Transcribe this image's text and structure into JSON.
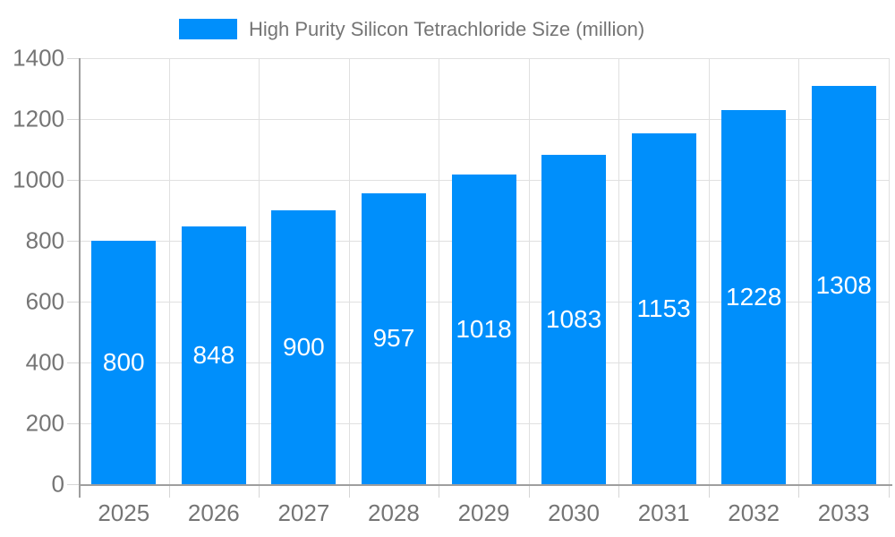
{
  "chart_data": {
    "type": "bar",
    "title": "High Purity Silicon Tetrachloride Size (million)",
    "categories": [
      "2025",
      "2026",
      "2027",
      "2028",
      "2029",
      "2030",
      "2031",
      "2032",
      "2033"
    ],
    "values": [
      800,
      848,
      900,
      957,
      1018,
      1083,
      1153,
      1228,
      1308
    ],
    "xlabel": "",
    "ylabel": "",
    "ylim": [
      0,
      1400
    ],
    "ytick_step": 200,
    "grid": true,
    "legend_position": "top",
    "value_labels": "centered-in-bar",
    "colors": {
      "bar": "#008FFB",
      "bar_label_text": "#ffffff",
      "grid_line": "#e0e0e0",
      "axis_line": "#9e9e9e",
      "tick_text": "#757575",
      "background": "#ffffff"
    }
  }
}
